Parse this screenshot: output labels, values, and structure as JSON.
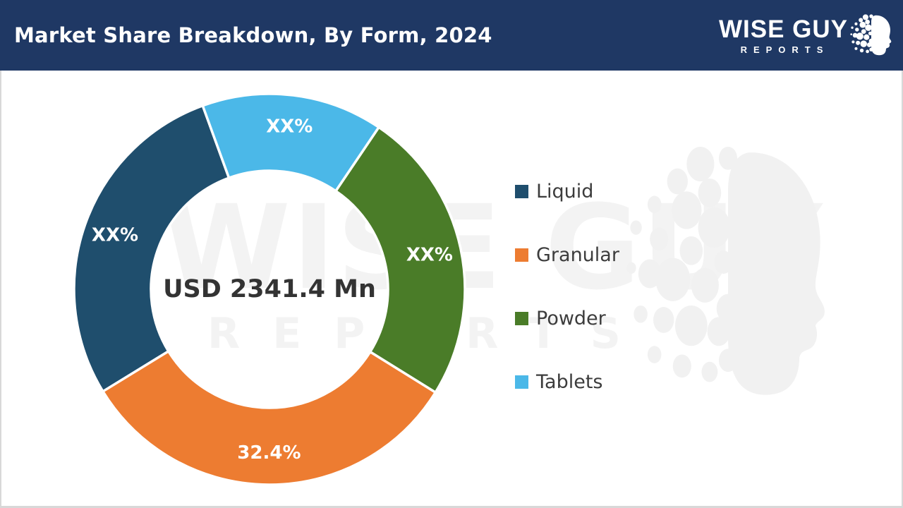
{
  "header": {
    "title": "Market Share Breakdown, By Form, 2024",
    "logo": {
      "line1": "WISE GUY",
      "line2": "REPORTS"
    }
  },
  "watermark": {
    "line1": "WISE GUY",
    "line2": "REPORTS"
  },
  "chart_data": {
    "type": "pie",
    "subtype": "donut",
    "title": "Market Share Breakdown, By Form, 2024",
    "center_label": "USD 2341.4 Mn",
    "start_angle_deg": -20,
    "segments": [
      {
        "name": "Tablets",
        "value_pct": 15.0,
        "label": "XX%",
        "color": "#4bb8e8"
      },
      {
        "name": "Powder",
        "value_pct": 24.4,
        "label": "XX%",
        "color": "#4a7c28"
      },
      {
        "name": "Granular",
        "value_pct": 32.4,
        "label": "32.4%",
        "color": "#ed7c31"
      },
      {
        "name": "Liquid",
        "value_pct": 28.2,
        "label": "XX%",
        "color": "#1f4e6d"
      }
    ],
    "legend": [
      {
        "label": "Liquid",
        "color": "#1f4e6d"
      },
      {
        "label": "Granular",
        "color": "#ed7c31"
      },
      {
        "label": "Powder",
        "color": "#4a7c28"
      },
      {
        "label": "Tablets",
        "color": "#4bb8e8"
      }
    ],
    "legend_position": "right"
  },
  "colors": {
    "header_bg": "#1f3864",
    "border": "#d8d8d8",
    "watermark": "#f3f3f3",
    "center_text": "#333333",
    "legend_text": "#3c3c3c"
  }
}
